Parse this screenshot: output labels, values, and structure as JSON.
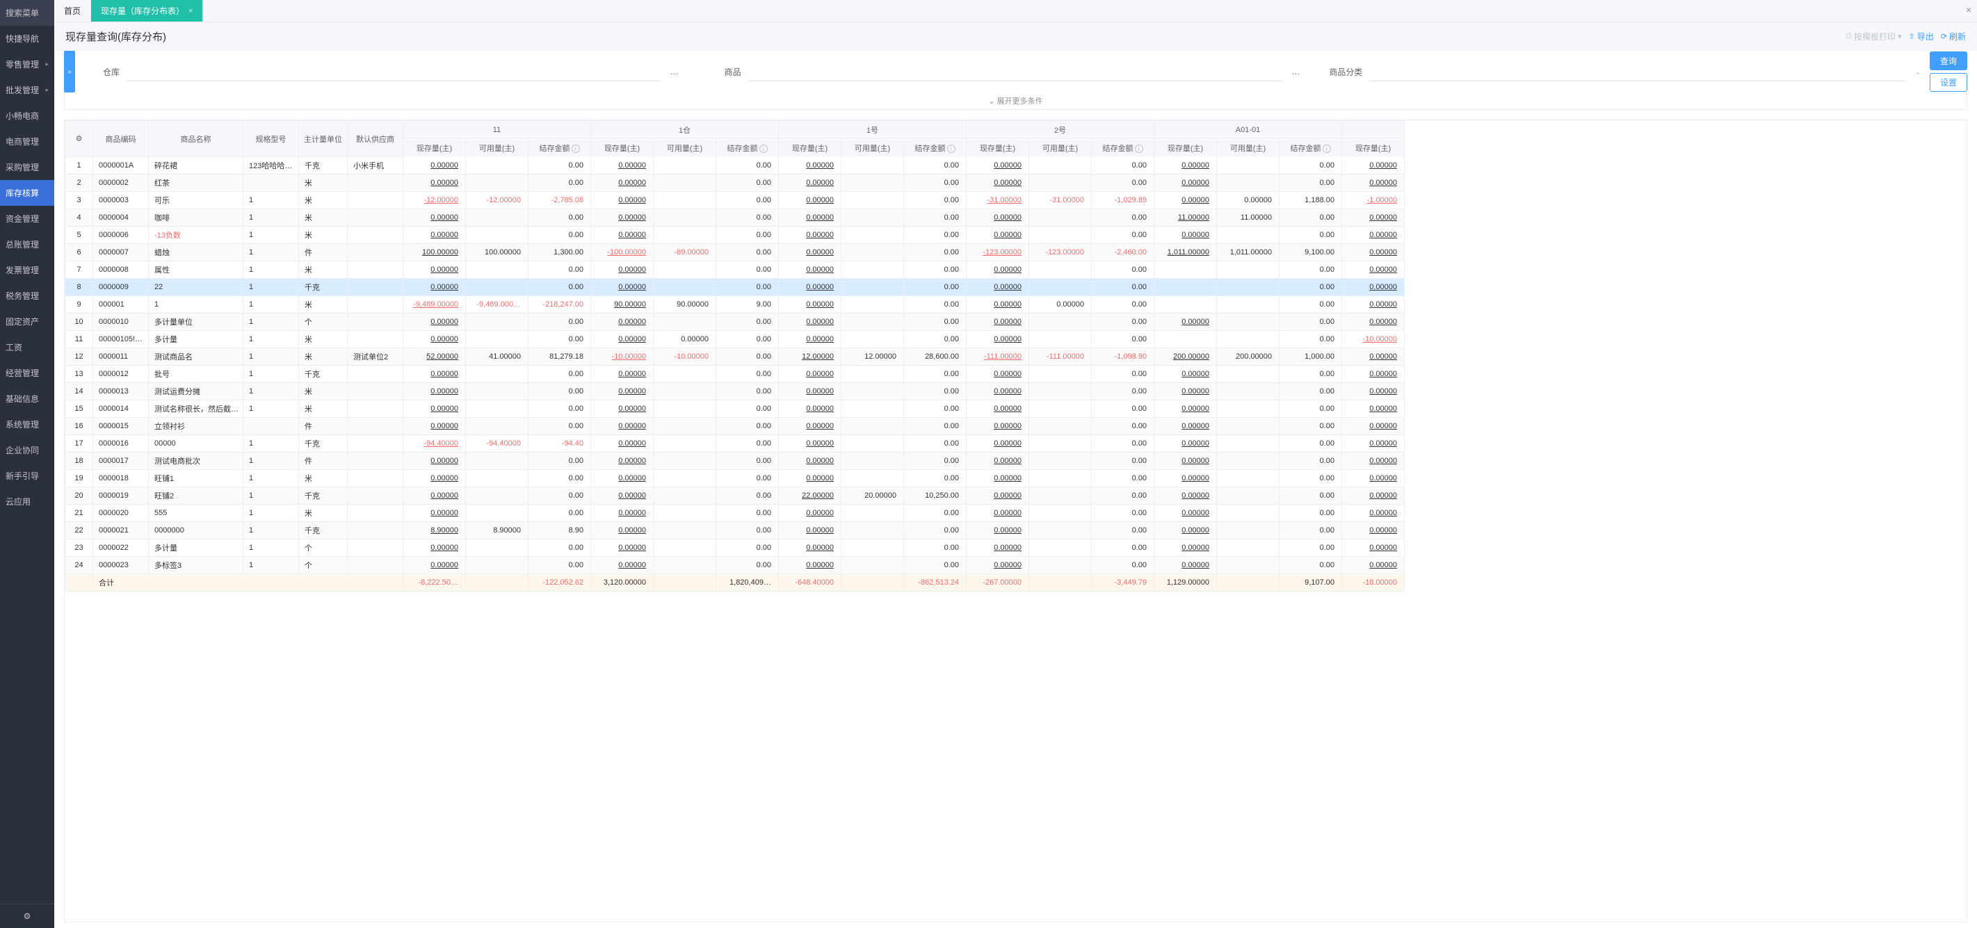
{
  "sidebar": {
    "items": [
      {
        "label": "搜索菜单",
        "expandable": false
      },
      {
        "label": "快捷导航",
        "expandable": false
      },
      {
        "label": "零售管理",
        "expandable": true
      },
      {
        "label": "批发管理",
        "expandable": true
      },
      {
        "label": "小畅电商",
        "expandable": false
      },
      {
        "label": "电商管理",
        "expandable": false
      },
      {
        "label": "采购管理",
        "expandable": false
      },
      {
        "label": "库存核算",
        "expandable": false,
        "active": true
      },
      {
        "label": "资金管理",
        "expandable": false
      },
      {
        "label": "总账管理",
        "expandable": false
      },
      {
        "label": "发票管理",
        "expandable": false
      },
      {
        "label": "税务管理",
        "expandable": false
      },
      {
        "label": "固定资产",
        "expandable": false
      },
      {
        "label": "工资",
        "expandable": false
      },
      {
        "label": "经营管理",
        "expandable": false
      },
      {
        "label": "基础信息",
        "expandable": false
      },
      {
        "label": "系统管理",
        "expandable": false
      },
      {
        "label": "企业协同",
        "expandable": false
      },
      {
        "label": "新手引导",
        "expandable": false
      },
      {
        "label": "云应用",
        "expandable": false
      }
    ]
  },
  "tabs": [
    {
      "label": "首页",
      "closable": false
    },
    {
      "label": "现存量（库存分布表）",
      "closable": true,
      "active": true
    }
  ],
  "page": {
    "title": "现存量查询(库存分布)",
    "actions": {
      "print_tpl": "按模板打印",
      "export": "导出",
      "refresh": "刷新"
    }
  },
  "filters": {
    "warehouse_label": "仓库",
    "product_label": "商品",
    "category_label": "商品分类",
    "more": "…",
    "query": "查询",
    "settings": "设置",
    "expand": "展开更多条件"
  },
  "warehouses": [
    "11",
    "1仓",
    "1号",
    "2号",
    "A01-01",
    ""
  ],
  "subcols": [
    "现存量(主)",
    "可用量(主)",
    "结存金额",
    "现存量(主)"
  ],
  "fixed_cols": {
    "gear": "⚙",
    "code": "商品编码",
    "name": "商品名称",
    "spec": "规格型号",
    "unit": "主计量单位",
    "supplier": "默认供应商"
  },
  "rows": [
    {
      "idx": 1,
      "code": "0000001A",
      "name": "碎花裙",
      "spec": "123哈哈哈…",
      "unit": "千克",
      "supplier": "小米手机",
      "cells": [
        [
          "0.00000",
          "",
          "0.00"
        ],
        [
          "0.00000",
          "",
          "0.00"
        ],
        [
          "0.00000",
          "",
          "0.00"
        ],
        [
          "0.00000",
          "",
          "0.00"
        ],
        [
          "0.00000",
          "",
          "0.00"
        ],
        [
          "0.00000"
        ]
      ]
    },
    {
      "idx": 2,
      "code": "0000002",
      "name": "红茶",
      "spec": "",
      "unit": "米",
      "supplier": "",
      "cells": [
        [
          "0.00000",
          "",
          "0.00"
        ],
        [
          "0.00000",
          "",
          "0.00"
        ],
        [
          "0.00000",
          "",
          "0.00"
        ],
        [
          "0.00000",
          "",
          "0.00"
        ],
        [
          "0.00000",
          "",
          "0.00"
        ],
        [
          "0.00000"
        ]
      ]
    },
    {
      "idx": 3,
      "code": "0000003",
      "name": "可乐",
      "spec": "1",
      "unit": "米",
      "supplier": "",
      "cells": [
        [
          "-12.00000",
          "-12.00000",
          "-2,785.08"
        ],
        [
          "0.00000",
          "",
          "0.00"
        ],
        [
          "0.00000",
          "",
          "0.00"
        ],
        [
          "-31.00000",
          "-31.00000",
          "-1,029.89"
        ],
        [
          "0.00000",
          "0.00000",
          "1,188.00"
        ],
        [
          "-1.00000"
        ]
      ]
    },
    {
      "idx": 4,
      "code": "0000004",
      "name": "咖啡",
      "spec": "1",
      "unit": "米",
      "supplier": "",
      "cells": [
        [
          "0.00000",
          "",
          "0.00"
        ],
        [
          "0.00000",
          "",
          "0.00"
        ],
        [
          "0.00000",
          "",
          "0.00"
        ],
        [
          "0.00000",
          "",
          "0.00"
        ],
        [
          "11.00000",
          "11.00000",
          "0.00"
        ],
        [
          "0.00000"
        ]
      ]
    },
    {
      "idx": 5,
      "code": "0000006",
      "name": "-13负数",
      "name_neg": true,
      "spec": "1",
      "unit": "米",
      "supplier": "",
      "cells": [
        [
          "0.00000",
          "",
          "0.00"
        ],
        [
          "0.00000",
          "",
          "0.00"
        ],
        [
          "0.00000",
          "",
          "0.00"
        ],
        [
          "0.00000",
          "",
          "0.00"
        ],
        [
          "0.00000",
          "",
          "0.00"
        ],
        [
          "0.00000"
        ]
      ]
    },
    {
      "idx": 6,
      "code": "0000007",
      "name": "蜡烛",
      "spec": "1",
      "unit": "件",
      "supplier": "",
      "cells": [
        [
          "100.00000",
          "100.00000",
          "1,300.00"
        ],
        [
          "-100.00000",
          "-89.00000",
          "0.00"
        ],
        [
          "0.00000",
          "",
          "0.00"
        ],
        [
          "-123.00000",
          "-123.00000",
          "-2,460.00"
        ],
        [
          "1,011.00000",
          "1,011.00000",
          "9,100.00"
        ],
        [
          "0.00000"
        ]
      ]
    },
    {
      "idx": 7,
      "code": "0000008",
      "name": "属性",
      "spec": "1",
      "unit": "米",
      "supplier": "",
      "cells": [
        [
          "0.00000",
          "",
          "0.00"
        ],
        [
          "0.00000",
          "",
          "0.00"
        ],
        [
          "0.00000",
          "",
          "0.00"
        ],
        [
          "0.00000",
          "",
          "0.00"
        ],
        [
          "",
          "",
          "0.00"
        ],
        [
          "0.00000"
        ]
      ]
    },
    {
      "idx": 8,
      "code": "0000009",
      "name": "22",
      "spec": "1",
      "unit": "千克",
      "supplier": "",
      "hl": true,
      "cells": [
        [
          "0.00000",
          "",
          "0.00"
        ],
        [
          "0.00000",
          "",
          "0.00"
        ],
        [
          "0.00000",
          "",
          "0.00"
        ],
        [
          "0.00000",
          "",
          "0.00"
        ],
        [
          "",
          "",
          "0.00"
        ],
        [
          "0.00000"
        ]
      ]
    },
    {
      "idx": 9,
      "code": "000001",
      "name": "1",
      "spec": "1",
      "unit": "米",
      "supplier": "",
      "cells": [
        [
          "-9,489.00000",
          "-9,489.000…",
          "-218,247.00"
        ],
        [
          "90.00000",
          "90.00000",
          "9.00"
        ],
        [
          "0.00000",
          "",
          "0.00"
        ],
        [
          "0.00000",
          "0.00000",
          "0.00"
        ],
        [
          "",
          "",
          "0.00"
        ],
        [
          "0.00000"
        ]
      ]
    },
    {
      "idx": 10,
      "code": "0000010",
      "name": "多计量单位",
      "spec": "1",
      "unit": "个",
      "supplier": "",
      "cells": [
        [
          "0.00000",
          "",
          "0.00"
        ],
        [
          "0.00000",
          "",
          "0.00"
        ],
        [
          "0.00000",
          "",
          "0.00"
        ],
        [
          "0.00000",
          "",
          "0.00"
        ],
        [
          "0.00000",
          "",
          "0.00"
        ],
        [
          "0.00000"
        ]
      ]
    },
    {
      "idx": 11,
      "code": "00000105!…",
      "name": "多计量",
      "spec": "1",
      "unit": "米",
      "supplier": "",
      "cells": [
        [
          "0.00000",
          "",
          "0.00"
        ],
        [
          "0.00000",
          "0.00000",
          "0.00"
        ],
        [
          "0.00000",
          "",
          "0.00"
        ],
        [
          "0.00000",
          "",
          "0.00"
        ],
        [
          "",
          "",
          "0.00"
        ],
        [
          "-10.00000"
        ]
      ]
    },
    {
      "idx": 12,
      "code": "0000011",
      "name": "测试商品名",
      "spec": "1",
      "unit": "米",
      "supplier": "测试单位2",
      "cells": [
        [
          "52.00000",
          "41.00000",
          "81,279.18"
        ],
        [
          "-10.00000",
          "-10.00000",
          "0.00"
        ],
        [
          "12.00000",
          "12.00000",
          "28,600.00"
        ],
        [
          "-111.00000",
          "-111.00000",
          "-1,098.90"
        ],
        [
          "200.00000",
          "200.00000",
          "1,000.00"
        ],
        [
          "0.00000"
        ]
      ]
    },
    {
      "idx": 13,
      "code": "0000012",
      "name": "批号",
      "spec": "1",
      "unit": "千克",
      "supplier": "",
      "cells": [
        [
          "0.00000",
          "",
          "0.00"
        ],
        [
          "0.00000",
          "",
          "0.00"
        ],
        [
          "0.00000",
          "",
          "0.00"
        ],
        [
          "0.00000",
          "",
          "0.00"
        ],
        [
          "0.00000",
          "",
          "0.00"
        ],
        [
          "0.00000"
        ]
      ]
    },
    {
      "idx": 14,
      "code": "0000013",
      "name": "测试运费分摊",
      "spec": "1",
      "unit": "米",
      "supplier": "",
      "cells": [
        [
          "0.00000",
          "",
          "0.00"
        ],
        [
          "0.00000",
          "",
          "0.00"
        ],
        [
          "0.00000",
          "",
          "0.00"
        ],
        [
          "0.00000",
          "",
          "0.00"
        ],
        [
          "0.00000",
          "",
          "0.00"
        ],
        [
          "0.00000"
        ]
      ]
    },
    {
      "idx": 15,
      "code": "0000014",
      "name": "测试名称很长，然后截…",
      "spec": "1",
      "unit": "米",
      "supplier": "",
      "cells": [
        [
          "0.00000",
          "",
          "0.00"
        ],
        [
          "0.00000",
          "",
          "0.00"
        ],
        [
          "0.00000",
          "",
          "0.00"
        ],
        [
          "0.00000",
          "",
          "0.00"
        ],
        [
          "0.00000",
          "",
          "0.00"
        ],
        [
          "0.00000"
        ]
      ]
    },
    {
      "idx": 16,
      "code": "0000015",
      "name": "立领衬衫",
      "spec": "",
      "unit": "件",
      "supplier": "",
      "cells": [
        [
          "0.00000",
          "",
          "0.00"
        ],
        [
          "0.00000",
          "",
          "0.00"
        ],
        [
          "0.00000",
          "",
          "0.00"
        ],
        [
          "0.00000",
          "",
          "0.00"
        ],
        [
          "0.00000",
          "",
          "0.00"
        ],
        [
          "0.00000"
        ]
      ]
    },
    {
      "idx": 17,
      "code": "0000016",
      "name": "00000",
      "spec": "1",
      "unit": "千克",
      "supplier": "",
      "cells": [
        [
          "-94.40000",
          "-94.40000",
          "-94.40"
        ],
        [
          "0.00000",
          "",
          "0.00"
        ],
        [
          "0.00000",
          "",
          "0.00"
        ],
        [
          "0.00000",
          "",
          "0.00"
        ],
        [
          "0.00000",
          "",
          "0.00"
        ],
        [
          "0.00000"
        ]
      ]
    },
    {
      "idx": 18,
      "code": "0000017",
      "name": "测试电商批次",
      "spec": "1",
      "unit": "件",
      "supplier": "",
      "cells": [
        [
          "0.00000",
          "",
          "0.00"
        ],
        [
          "0.00000",
          "",
          "0.00"
        ],
        [
          "0.00000",
          "",
          "0.00"
        ],
        [
          "0.00000",
          "",
          "0.00"
        ],
        [
          "0.00000",
          "",
          "0.00"
        ],
        [
          "0.00000"
        ]
      ]
    },
    {
      "idx": 19,
      "code": "0000018",
      "name": "旺铺1",
      "spec": "1",
      "unit": "米",
      "supplier": "",
      "cells": [
        [
          "0.00000",
          "",
          "0.00"
        ],
        [
          "0.00000",
          "",
          "0.00"
        ],
        [
          "0.00000",
          "",
          "0.00"
        ],
        [
          "0.00000",
          "",
          "0.00"
        ],
        [
          "0.00000",
          "",
          "0.00"
        ],
        [
          "0.00000"
        ]
      ]
    },
    {
      "idx": 20,
      "code": "0000019",
      "name": "旺铺2",
      "spec": "1",
      "unit": "千克",
      "supplier": "",
      "cells": [
        [
          "0.00000",
          "",
          "0.00"
        ],
        [
          "0.00000",
          "",
          "0.00"
        ],
        [
          "22.00000",
          "20.00000",
          "10,250.00"
        ],
        [
          "0.00000",
          "",
          "0.00"
        ],
        [
          "0.00000",
          "",
          "0.00"
        ],
        [
          "0.00000"
        ]
      ]
    },
    {
      "idx": 21,
      "code": "0000020",
      "name": "555",
      "spec": "1",
      "unit": "米",
      "supplier": "",
      "cells": [
        [
          "0.00000",
          "",
          "0.00"
        ],
        [
          "0.00000",
          "",
          "0.00"
        ],
        [
          "0.00000",
          "",
          "0.00"
        ],
        [
          "0.00000",
          "",
          "0.00"
        ],
        [
          "0.00000",
          "",
          "0.00"
        ],
        [
          "0.00000"
        ]
      ]
    },
    {
      "idx": 22,
      "code": "0000021",
      "name": "0000000",
      "spec": "1",
      "unit": "千克",
      "supplier": "",
      "cells": [
        [
          "8.90000",
          "8.90000",
          "8.90"
        ],
        [
          "0.00000",
          "",
          "0.00"
        ],
        [
          "0.00000",
          "",
          "0.00"
        ],
        [
          "0.00000",
          "",
          "0.00"
        ],
        [
          "0.00000",
          "",
          "0.00"
        ],
        [
          "0.00000"
        ]
      ]
    },
    {
      "idx": 23,
      "code": "0000022",
      "name": "多计量",
      "spec": "1",
      "unit": "个",
      "supplier": "",
      "cells": [
        [
          "0.00000",
          "",
          "0.00"
        ],
        [
          "0.00000",
          "",
          "0.00"
        ],
        [
          "0.00000",
          "",
          "0.00"
        ],
        [
          "0.00000",
          "",
          "0.00"
        ],
        [
          "0.00000",
          "",
          "0.00"
        ],
        [
          "0.00000"
        ]
      ]
    },
    {
      "idx": 24,
      "code": "0000023",
      "name": "多标签3",
      "spec": "1",
      "unit": "个",
      "supplier": "",
      "cells": [
        [
          "0.00000",
          "",
          "0.00"
        ],
        [
          "0.00000",
          "",
          "0.00"
        ],
        [
          "0.00000",
          "",
          "0.00"
        ],
        [
          "0.00000",
          "",
          "0.00"
        ],
        [
          "0.00000",
          "",
          "0.00"
        ],
        [
          "0.00000"
        ]
      ]
    }
  ],
  "totals": {
    "label": "合计",
    "values": [
      "-8,222.50…",
      "",
      "-122,052.62",
      "3,120.00000",
      "",
      "1,820,409…",
      "-648.40000",
      "",
      "-862,513.24",
      "-267.00000",
      "",
      "-3,449.79",
      "1,129.00000",
      "",
      "9,107.00",
      "-18.00000"
    ]
  }
}
